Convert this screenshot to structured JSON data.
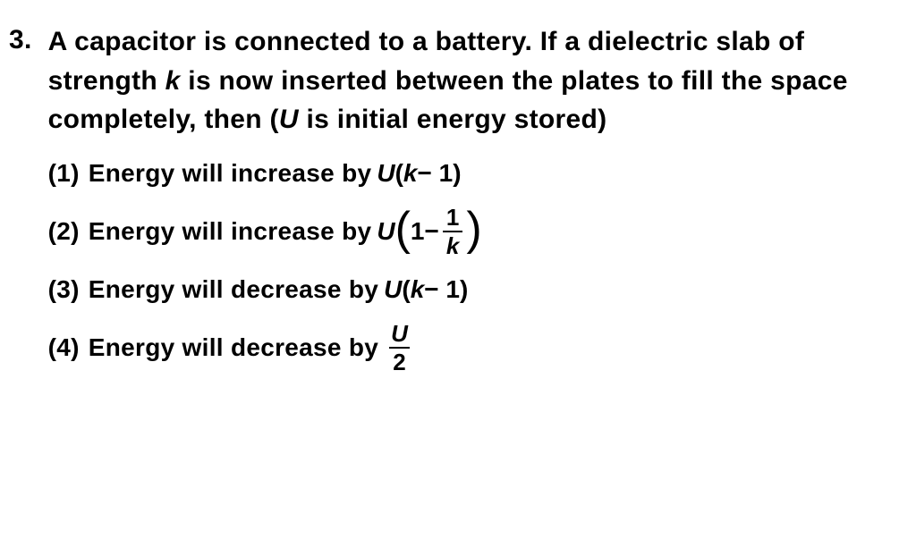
{
  "question": {
    "number": "3.",
    "text_parts": {
      "p1": "A capacitor is connected to a battery. If a dielectric slab of strength ",
      "var_k": "k",
      "p2": " is now inserted between the plates to fill the space completely, then (",
      "var_u": "U",
      "p3": " is initial energy stored)"
    }
  },
  "options": [
    {
      "label": "(1)",
      "prefix": "Energy will increase by ",
      "formula_type": "simple",
      "formula": {
        "U": "U",
        "open": "(",
        "k": "k",
        "minus": " − 1",
        "close": ")"
      }
    },
    {
      "label": "(2)",
      "prefix": "Energy will increase by ",
      "formula_type": "frac_paren",
      "formula": {
        "U": "U",
        "lp": "(",
        "lead": "1−",
        "num": "1",
        "den": "k",
        "rp": ")"
      }
    },
    {
      "label": "(3)",
      "prefix": "Energy will decrease by ",
      "formula_type": "simple",
      "formula": {
        "U": "U",
        "open": "(",
        "k": "k",
        "minus": " − 1",
        "close": ")"
      }
    },
    {
      "label": "(4)",
      "prefix": "Energy will decrease by ",
      "formula_type": "frac_only",
      "formula": {
        "num": "U",
        "den": "2"
      }
    }
  ],
  "style": {
    "text_color": "#000000",
    "background_color": "#ffffff",
    "question_fontsize": 30,
    "option_fontsize": 28,
    "font_weight": "bold"
  }
}
